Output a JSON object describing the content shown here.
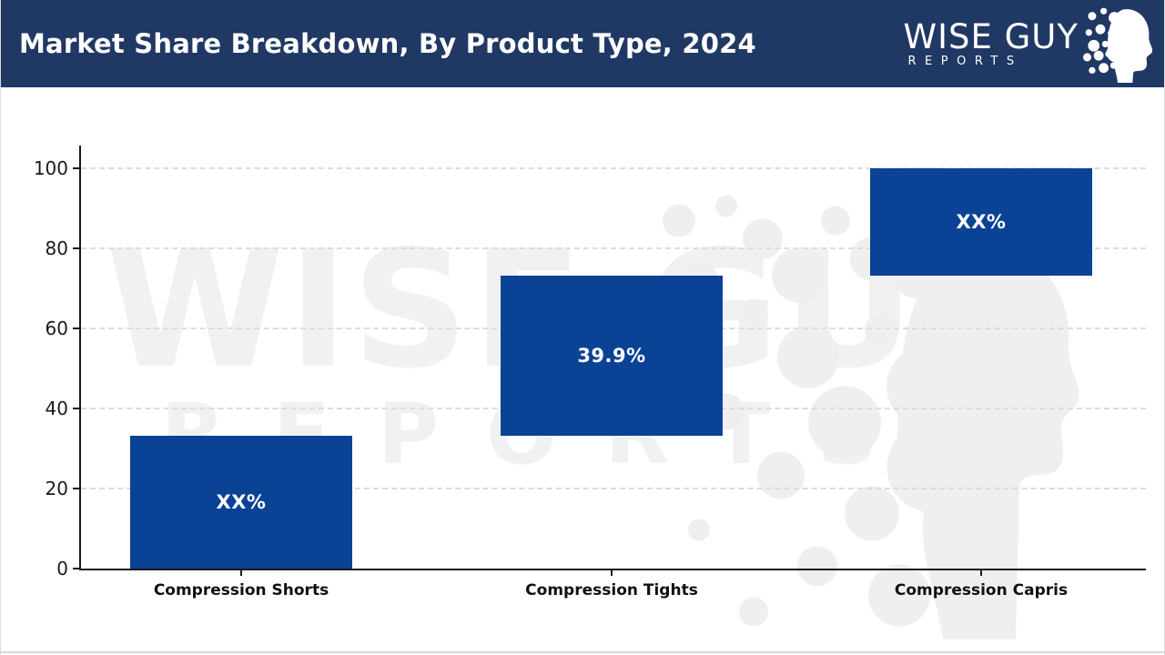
{
  "header": {
    "title": "Market Share Breakdown, By Product Type, 2024",
    "bg_color": "#203864",
    "logo": {
      "line1": "WISE GUY",
      "line2": "REPORTS"
    }
  },
  "watermark": {
    "line1": "WISE GUY",
    "line2": "REPORTS"
  },
  "chart_data": {
    "type": "bar",
    "subtype": "floating-bar-waterfall",
    "title": "Market Share Breakdown, By Product Type, 2024",
    "categories": [
      "Compression Shorts",
      "Compression Tights",
      "Compression Capris"
    ],
    "segments": [
      {
        "category": "Compression Shorts",
        "start": 0,
        "end": 33.2,
        "value": 33.2,
        "value_label": "XX%"
      },
      {
        "category": "Compression Tights",
        "start": 33.2,
        "end": 73.1,
        "value": 39.9,
        "value_label": "39.9%"
      },
      {
        "category": "Compression Capris",
        "start": 73.1,
        "end": 100,
        "value": 26.9,
        "value_label": "XX%"
      }
    ],
    "xlabel": "",
    "ylabel": "",
    "ylim": [
      0,
      100
    ],
    "yticks": [
      0,
      20,
      40,
      60,
      80,
      100
    ],
    "bar_color": "#0a4296",
    "value_label_color": "#ffffff",
    "grid": "horizontal-dashed",
    "gridline_color": "#dcdcdc",
    "legend_position": "none"
  }
}
